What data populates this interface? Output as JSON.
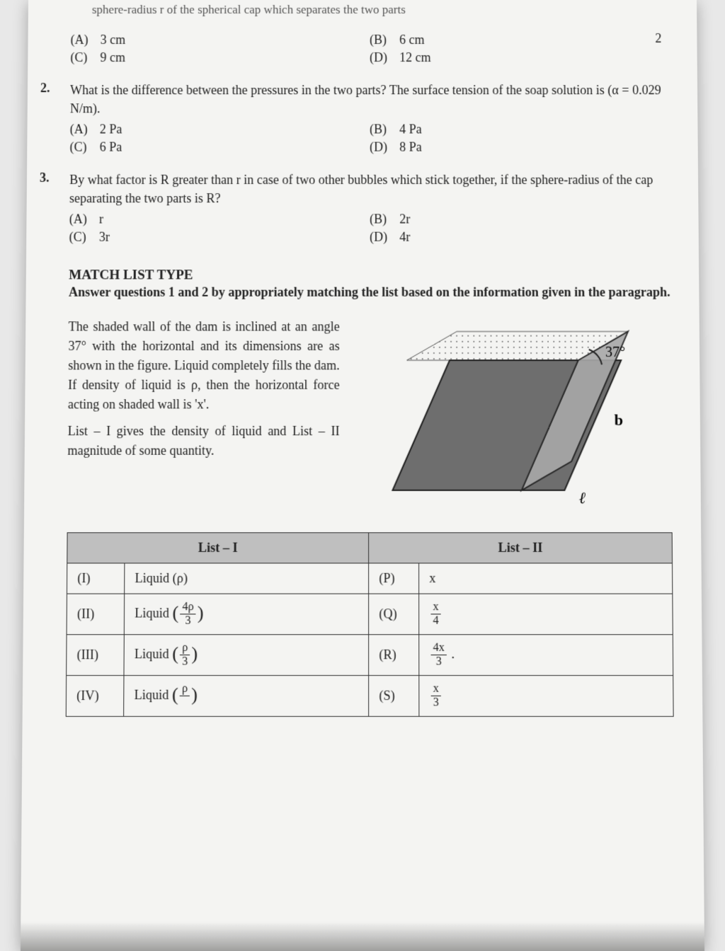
{
  "cutoff_text": "sphere-radius r of the spherical cap which separates the two parts",
  "page_number": "2",
  "q1_opts": {
    "a_label": "(A)",
    "a": "3 cm",
    "b_label": "(B)",
    "b": "6 cm",
    "c_label": "(C)",
    "c": "9 cm",
    "d_label": "(D)",
    "d": "12 cm"
  },
  "q2": {
    "num": "2.",
    "text": "What is the difference between the pressures in the two parts? The surface tension of the soap solution is (α = 0.029 N/m).",
    "a_label": "(A)",
    "a": "2 Pa",
    "b_label": "(B)",
    "b": "4 Pa",
    "c_label": "(C)",
    "c": "6 Pa",
    "d_label": "(D)",
    "d": "8 Pa"
  },
  "q3": {
    "num": "3.",
    "text": "By what factor is R greater than r in case of two other bubbles which stick together, if the sphere-radius of the cap separating the two parts is R?",
    "a_label": "(A)",
    "a": "r",
    "b_label": "(B)",
    "b": "2r",
    "c_label": "(C)",
    "c": "3r",
    "d_label": "(D)",
    "d": "4r"
  },
  "match": {
    "head": "MATCH LIST TYPE",
    "sub": "Answer questions 1 and 2 by appropriately matching the list based on the information given in the paragraph.",
    "para": "The shaded wall of the dam is inclined at an angle 37° with the horizontal and its dimensions are as shown in the figure. Liquid completely fills the dam. If density of liquid is ρ, then the horizontal force acting on shaded wall is 'x'.",
    "para2": "List – I gives the density of liquid and List – II magnitude of some quantity.",
    "diagram": {
      "angle_label": "37°",
      "b_label": "b",
      "l_label": "ℓ",
      "shaded_color": "#a8a8a8",
      "face_color": "#6e6e6e",
      "dots_color": "#777",
      "line_color": "#222"
    },
    "table": {
      "h1": "List – I",
      "h2": "List – II",
      "rows": [
        {
          "rn": "(I)",
          "l1_pre": "Liquid (ρ)",
          "code": "(P)",
          "l2": "x"
        },
        {
          "rn": "(II)",
          "l1_pre": "Liquid ",
          "frac_num": "4ρ",
          "frac_den": "3",
          "code": "(Q)",
          "l2_frac_num": "x",
          "l2_frac_den": "4"
        },
        {
          "rn": "(III)",
          "l1_pre": "Liquid ",
          "frac_num": "ρ",
          "frac_den": "3",
          "code": "(R)",
          "l2_frac_num": "4x",
          "l2_frac_den": "3",
          "l2_suffix": " ."
        },
        {
          "rn": "(IV)",
          "l1_pre": "Liquid ",
          "frac_num": "ρ",
          "frac_den": "",
          "code": "(S)",
          "l2_frac_num": "x",
          "l2_frac_den": "3"
        }
      ]
    }
  }
}
